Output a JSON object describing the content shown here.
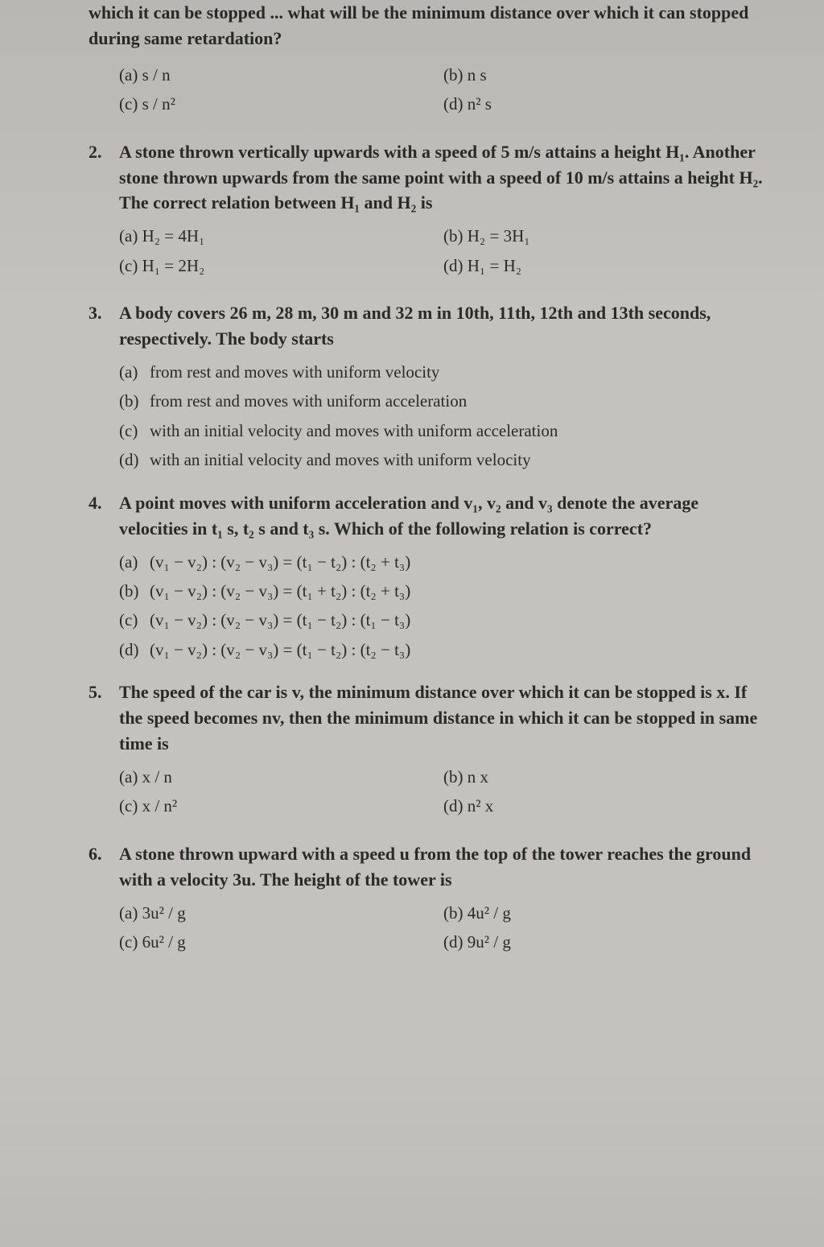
{
  "q1": {
    "intro": "which it can be stopped ... what will be the minimum distance over which it can stopped during same retardation?",
    "options": {
      "a": "s / n",
      "b": "n s",
      "c": "s / n²",
      "d": "n² s"
    }
  },
  "q2": {
    "num": "2.",
    "text": "A stone thrown vertically upwards with a speed of 5 m/s attains a height H₁. Another stone thrown upwards from the same point with a speed of 10 m/s attains a height H₂. The correct relation between H₁ and H₂ is",
    "options": {
      "a": "H₂ = 4H₁",
      "b": "H₂ = 3H₁",
      "c": "H₁ = 2H₂",
      "d": "H₁ = H₂"
    }
  },
  "q3": {
    "num": "3.",
    "text": "A body covers 26 m, 28 m, 30 m and 32 m in 10th, 11th, 12th and 13th seconds, respectively. The body starts",
    "options": {
      "a": "from rest and moves with uniform velocity",
      "b": "from rest and moves with uniform acceleration",
      "c": "with an initial velocity and moves with uniform acceleration",
      "d": "with an initial velocity and moves with uniform velocity"
    }
  },
  "q4": {
    "num": "4.",
    "text": "A point moves with uniform acceleration and v₁, v₂ and v₃ denote the average velocities in t₁ s, t₂ s and t₃ s. Which of the following relation is correct?",
    "options": {
      "a": "(v₁ − v₂) : (v₂ − v₃) = (t₁ − t₂) : (t₂ + t₃)",
      "b": "(v₁ − v₂) : (v₂ − v₃) = (t₁ + t₂) : (t₂ + t₃)",
      "c": "(v₁ − v₂) : (v₂ − v₃) = (t₁ − t₂) : (t₁ − t₃)",
      "d": "(v₁ − v₂) : (v₂ − v₃) = (t₁ − t₂) : (t₂ − t₃)"
    }
  },
  "q5": {
    "num": "5.",
    "text": "The speed of the car is v, the minimum distance over which it can be stopped is x. If the speed becomes nv, then the minimum distance in which it can be stopped in same time is",
    "options": {
      "a": "x / n",
      "b": "n x",
      "c": "x / n²",
      "d": "n² x"
    }
  },
  "q6": {
    "num": "6.",
    "text": "A stone thrown upward with a speed u from the top of the tower reaches the ground with a velocity 3u. The height of the tower is",
    "options": {
      "a": "3u² / g",
      "b": "4u² / g",
      "c": "6u² / g",
      "d": "9u² / g"
    }
  }
}
